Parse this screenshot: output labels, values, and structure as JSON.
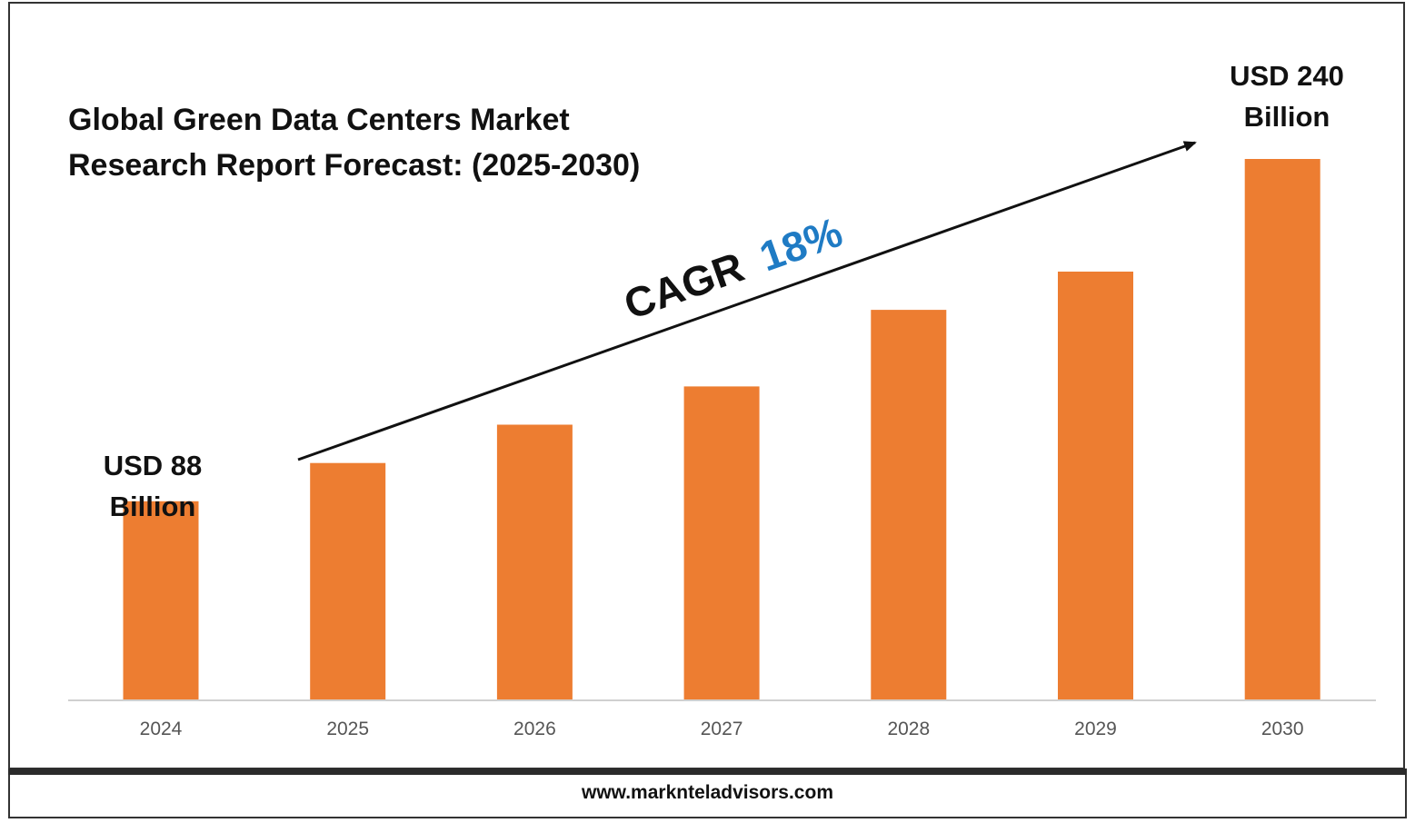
{
  "chart_data": {
    "type": "bar",
    "title": "Global Green Data Centers Market Research Report Forecast: (2025-2030)",
    "title_lines": [
      "Global Green Data Centers Market",
      "Research Report Forecast: (2025-2030)"
    ],
    "categories": [
      "2024",
      "2025",
      "2026",
      "2027",
      "2028",
      "2029",
      "2030"
    ],
    "values": [
      88,
      105,
      122,
      139,
      173,
      190,
      240
    ],
    "bar_color": "#ed7d31",
    "xlabel": "",
    "ylabel": "",
    "ylim": [
      0,
      275
    ],
    "grid": false,
    "annotations": {
      "start_label": [
        "USD 88",
        "Billion"
      ],
      "end_label": [
        "USD 240",
        "Billion"
      ],
      "cagr_label": "CAGR",
      "cagr_value": "18%",
      "cagr_color": "#1f7bc4"
    }
  },
  "footer": {
    "url": "www.marknteladvisors.com"
  }
}
